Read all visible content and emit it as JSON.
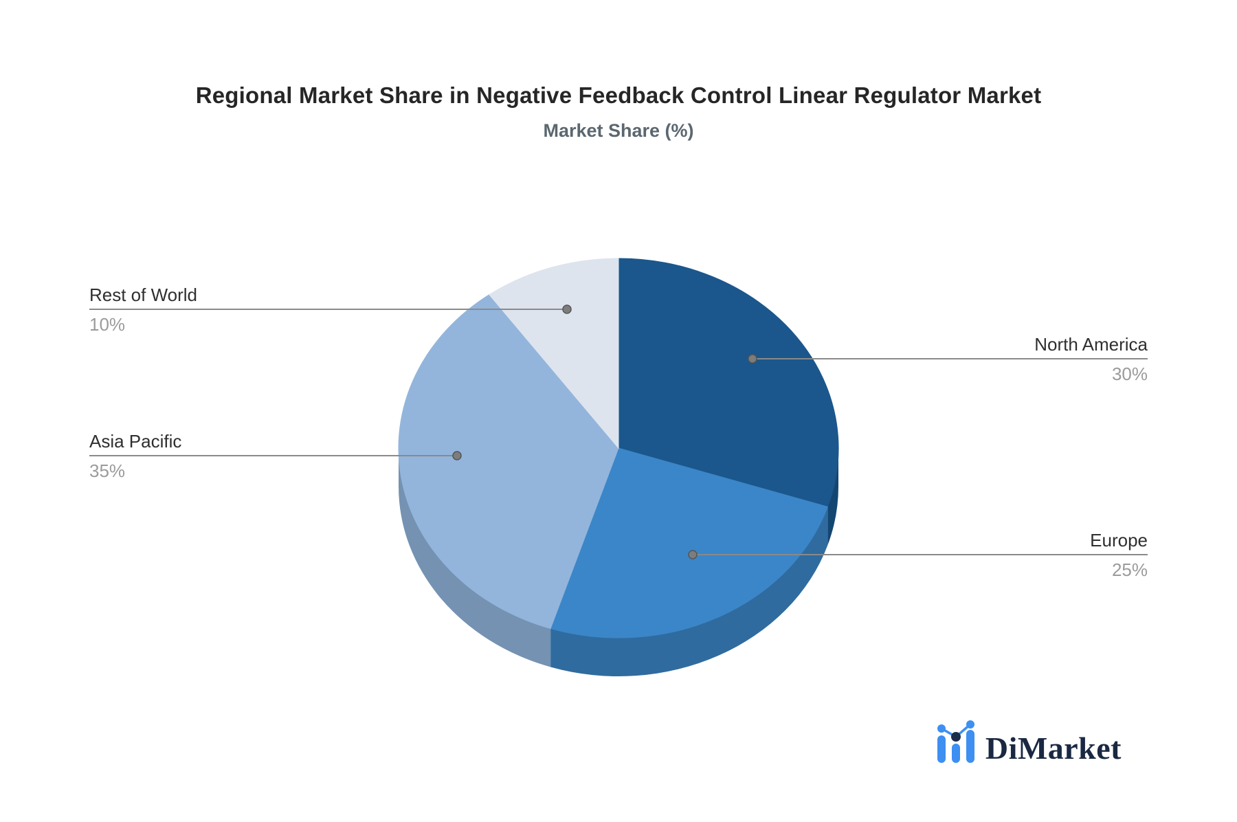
{
  "header": {
    "title": "Regional Market Share in Negative Feedback Control Linear Regulator Market",
    "subtitle": "Market Share (%)"
  },
  "chart_data": {
    "type": "pie",
    "title": "Regional Market Share in Negative Feedback Control Linear Regulator Market",
    "subtitle": "Market Share (%)",
    "unit": "%",
    "effect": "3d-depth",
    "start_angle_deg": 0,
    "direction": "clockwise",
    "legend": "none",
    "slices": [
      {
        "label": "North America",
        "value": 30,
        "display": "30%",
        "color": "#1b578c",
        "depth_color": "#144672",
        "label_side": "right"
      },
      {
        "label": "Europe",
        "value": 25,
        "display": "25%",
        "color": "#3b86c8",
        "depth_color": "#2f6b9f",
        "label_side": "right"
      },
      {
        "label": "Asia Pacific",
        "value": 35,
        "display": "35%",
        "color": "#93b5dc",
        "depth_color": "#7592b2",
        "label_side": "left"
      },
      {
        "label": "Rest of World",
        "value": 10,
        "display": "10%",
        "color": "#dde4ee",
        "depth_color": "#b6bdca",
        "label_side": "left"
      }
    ]
  },
  "style_colors": {
    "leader_line": "#8a8a8a",
    "leader_dot": "#7d7d7d",
    "leader_dot_edge": "#565656",
    "label_text": "#2f2f2f",
    "pct_text": "#9b9b9b"
  },
  "branding": {
    "logo_text": "DiMarket",
    "logo_icon": "bar-line-chart-icon",
    "icon_bar_color": "#3d8ff2",
    "icon_dot_color": "#1c2c4a",
    "text_color": "#1a2842"
  }
}
